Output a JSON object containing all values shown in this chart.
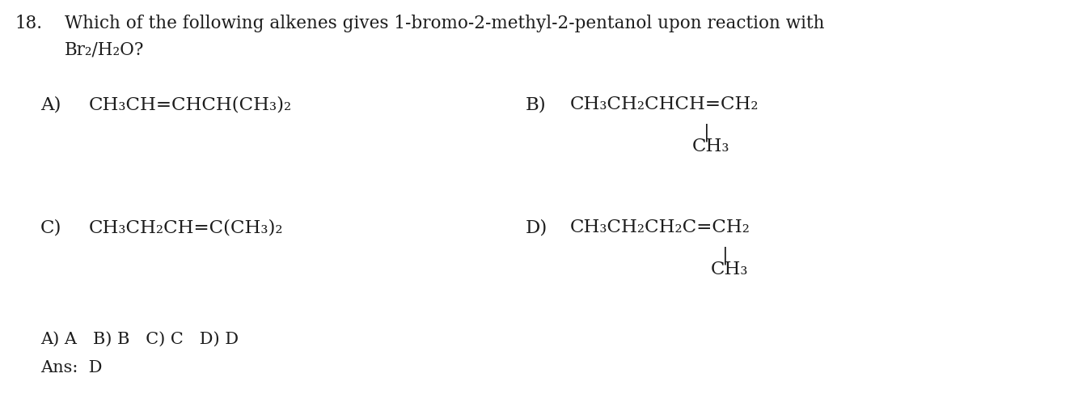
{
  "background_color": "#ffffff",
  "fig_width": 13.33,
  "fig_height": 4.98,
  "font_color": "#1c1c1c",
  "font_size_question": 15.5,
  "font_size_options": 16.5,
  "font_size_answer": 15.0,
  "question_number": "18.",
  "question_line1": "Which of the following alkenes gives 1-bromo-2-methyl-2-pentanol upon reaction with",
  "question_line2": "Br₂/H₂O?",
  "optA_label": "A)",
  "optA_formula": "CH₃CH=CHCH(CH₃)₂",
  "optB_label": "B)",
  "optB_formula": "CH₃CH₂CHCH=CH₂",
  "optB_bar": "|",
  "optB_sub": "CH₃",
  "optC_label": "C)",
  "optC_formula": "CH₃CH₂CH=C(CH₃)₂",
  "optD_label": "D)",
  "optD_formula": "CH₃CH₂CH₂C=CH₂",
  "optD_bar": "|",
  "optD_sub": "CH₃",
  "answer_choices": "A) A   B) B   C) C   D) D",
  "answer_line": "Ans:  D"
}
